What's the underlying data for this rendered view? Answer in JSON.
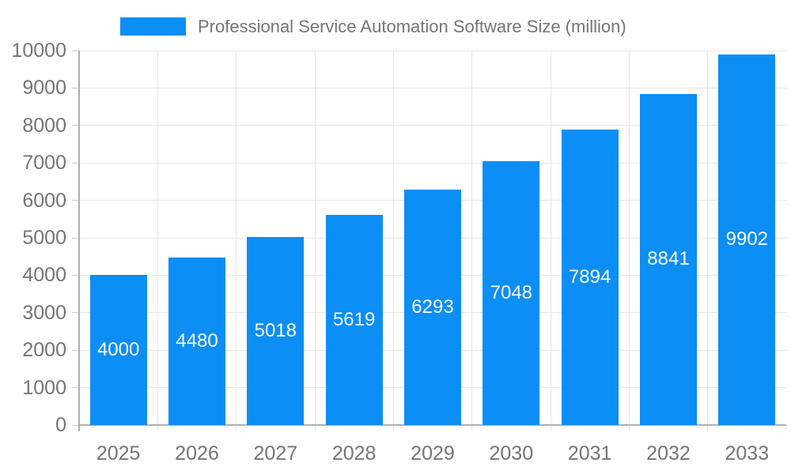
{
  "chart_data": {
    "type": "bar",
    "title": "Professional Service Automation Software Size (million)",
    "categories": [
      "2025",
      "2026",
      "2027",
      "2028",
      "2029",
      "2030",
      "2031",
      "2032",
      "2033"
    ],
    "values": [
      4000,
      4480,
      5018,
      5619,
      6293,
      7048,
      7894,
      8841,
      9902
    ],
    "xlabel": "",
    "ylabel": "",
    "ylim": [
      0,
      10000
    ],
    "ytick_step": 1000,
    "grid": "on",
    "legend_position": "top",
    "value_labels": "centered-inside-bars",
    "colors": {
      "bar": "#0b8ef5",
      "grid": "#e6e6e6",
      "axis": "#b0b0b0",
      "tick": "#cccccc",
      "text": "#757575",
      "value_label": "#ffffff"
    }
  }
}
